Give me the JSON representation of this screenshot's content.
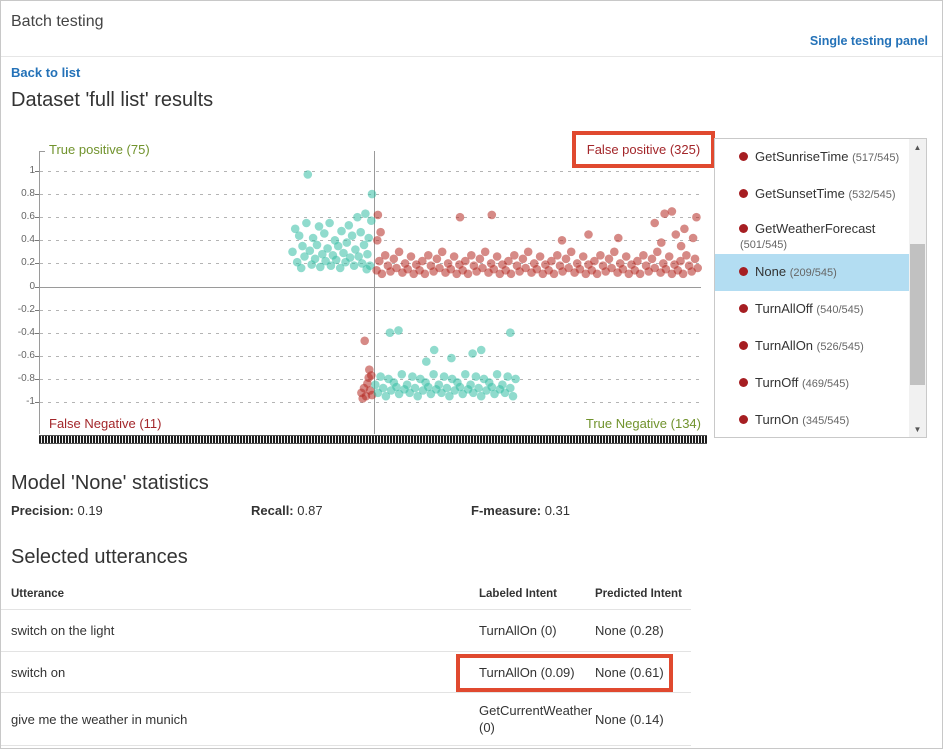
{
  "colors": {
    "link_blue": "#2472b8",
    "teal_point": "#35bda4",
    "red_point": "#b52a23",
    "green_label": "#71932d",
    "red_label": "#a3262a",
    "selected_row_bg": "#b3ddf2",
    "annotation_red": "#e0492f",
    "intent_dot_red": "#a61e22"
  },
  "header": {
    "title": "Batch testing",
    "panel_link": "Single testing panel"
  },
  "back_link": "Back to list",
  "dataset_heading": "Dataset 'full list' results",
  "chart_data": {
    "type": "scatter",
    "title": "Dataset 'full list' results",
    "xlabel": "",
    "ylabel": "confidence score",
    "ylim": [
      -1,
      1
    ],
    "grid": true,
    "y_ticks": [
      1,
      0.8,
      0.6,
      0.4,
      0.2,
      0,
      -0.2,
      -0.4,
      -0.6,
      -0.8,
      -1
    ],
    "quadrant_labels": {
      "true_positive": "True positive (75)",
      "false_positive": "False positive (325)",
      "false_negative": "False Negative (11)",
      "true_negative": "True Negative (134)"
    },
    "quadrant_counts": {
      "true_positive": 75,
      "false_positive": 325,
      "false_negative": 11,
      "true_negative": 134
    },
    "divider_x_fraction": 0.506,
    "series": [
      {
        "name": "true-positive",
        "color": "#35bda4",
        "points": [
          [
            0.383,
            0.3
          ],
          [
            0.387,
            0.5
          ],
          [
            0.39,
            0.21
          ],
          [
            0.393,
            0.44
          ],
          [
            0.396,
            0.16
          ],
          [
            0.398,
            0.35
          ],
          [
            0.401,
            0.26
          ],
          [
            0.404,
            0.55
          ],
          [
            0.406,
            0.97
          ],
          [
            0.409,
            0.31
          ],
          [
            0.412,
            0.19
          ],
          [
            0.414,
            0.42
          ],
          [
            0.417,
            0.24
          ],
          [
            0.42,
            0.36
          ],
          [
            0.423,
            0.52
          ],
          [
            0.425,
            0.17
          ],
          [
            0.428,
            0.28
          ],
          [
            0.431,
            0.46
          ],
          [
            0.433,
            0.22
          ],
          [
            0.436,
            0.33
          ],
          [
            0.439,
            0.55
          ],
          [
            0.441,
            0.18
          ],
          [
            0.444,
            0.27
          ],
          [
            0.447,
            0.4
          ],
          [
            0.449,
            0.23
          ],
          [
            0.452,
            0.35
          ],
          [
            0.455,
            0.16
          ],
          [
            0.457,
            0.48
          ],
          [
            0.46,
            0.29
          ],
          [
            0.463,
            0.21
          ],
          [
            0.465,
            0.38
          ],
          [
            0.468,
            0.53
          ],
          [
            0.47,
            0.25
          ],
          [
            0.473,
            0.44
          ],
          [
            0.476,
            0.18
          ],
          [
            0.478,
            0.32
          ],
          [
            0.481,
            0.6
          ],
          [
            0.483,
            0.26
          ],
          [
            0.486,
            0.47
          ],
          [
            0.488,
            0.2
          ],
          [
            0.491,
            0.36
          ],
          [
            0.493,
            0.63
          ],
          [
            0.496,
            0.28
          ],
          [
            0.498,
            0.42
          ],
          [
            0.5,
            0.18
          ],
          [
            0.502,
            0.57
          ],
          [
            0.503,
            0.8
          ],
          [
            0.495,
            0.15
          ]
        ]
      },
      {
        "name": "false-positive",
        "color": "#b52a23",
        "points": [
          [
            0.51,
            0.14
          ],
          [
            0.514,
            0.22
          ],
          [
            0.518,
            0.11
          ],
          [
            0.523,
            0.27
          ],
          [
            0.527,
            0.18
          ],
          [
            0.531,
            0.13
          ],
          [
            0.536,
            0.24
          ],
          [
            0.54,
            0.16
          ],
          [
            0.544,
            0.3
          ],
          [
            0.549,
            0.12
          ],
          [
            0.553,
            0.2
          ],
          [
            0.557,
            0.15
          ],
          [
            0.562,
            0.26
          ],
          [
            0.566,
            0.11
          ],
          [
            0.57,
            0.19
          ],
          [
            0.575,
            0.14
          ],
          [
            0.579,
            0.22
          ],
          [
            0.583,
            0.11
          ],
          [
            0.588,
            0.27
          ],
          [
            0.592,
            0.18
          ],
          [
            0.596,
            0.13
          ],
          [
            0.601,
            0.24
          ],
          [
            0.605,
            0.16
          ],
          [
            0.609,
            0.3
          ],
          [
            0.614,
            0.12
          ],
          [
            0.618,
            0.2
          ],
          [
            0.622,
            0.15
          ],
          [
            0.627,
            0.26
          ],
          [
            0.631,
            0.11
          ],
          [
            0.635,
            0.19
          ],
          [
            0.64,
            0.14
          ],
          [
            0.644,
            0.22
          ],
          [
            0.648,
            0.11
          ],
          [
            0.653,
            0.27
          ],
          [
            0.657,
            0.18
          ],
          [
            0.661,
            0.13
          ],
          [
            0.666,
            0.24
          ],
          [
            0.67,
            0.16
          ],
          [
            0.674,
            0.3
          ],
          [
            0.679,
            0.12
          ],
          [
            0.683,
            0.2
          ],
          [
            0.687,
            0.15
          ],
          [
            0.692,
            0.26
          ],
          [
            0.696,
            0.11
          ],
          [
            0.7,
            0.19
          ],
          [
            0.705,
            0.14
          ],
          [
            0.709,
            0.22
          ],
          [
            0.713,
            0.11
          ],
          [
            0.718,
            0.27
          ],
          [
            0.722,
            0.18
          ],
          [
            0.726,
            0.13
          ],
          [
            0.731,
            0.24
          ],
          [
            0.735,
            0.16
          ],
          [
            0.739,
            0.3
          ],
          [
            0.744,
            0.12
          ],
          [
            0.748,
            0.2
          ],
          [
            0.752,
            0.15
          ],
          [
            0.757,
            0.26
          ],
          [
            0.761,
            0.11
          ],
          [
            0.765,
            0.19
          ],
          [
            0.77,
            0.14
          ],
          [
            0.774,
            0.22
          ],
          [
            0.778,
            0.11
          ],
          [
            0.783,
            0.27
          ],
          [
            0.787,
            0.18
          ],
          [
            0.791,
            0.13
          ],
          [
            0.796,
            0.24
          ],
          [
            0.8,
            0.16
          ],
          [
            0.804,
            0.3
          ],
          [
            0.809,
            0.12
          ],
          [
            0.813,
            0.2
          ],
          [
            0.817,
            0.15
          ],
          [
            0.822,
            0.26
          ],
          [
            0.826,
            0.11
          ],
          [
            0.83,
            0.19
          ],
          [
            0.835,
            0.14
          ],
          [
            0.839,
            0.22
          ],
          [
            0.843,
            0.11
          ],
          [
            0.848,
            0.27
          ],
          [
            0.852,
            0.18
          ],
          [
            0.856,
            0.13
          ],
          [
            0.861,
            0.24
          ],
          [
            0.865,
            0.16
          ],
          [
            0.869,
            0.3
          ],
          [
            0.874,
            0.12
          ],
          [
            0.878,
            0.2
          ],
          [
            0.882,
            0.15
          ],
          [
            0.887,
            0.26
          ],
          [
            0.891,
            0.11
          ],
          [
            0.895,
            0.19
          ],
          [
            0.9,
            0.14
          ],
          [
            0.904,
            0.22
          ],
          [
            0.908,
            0.11
          ],
          [
            0.913,
            0.27
          ],
          [
            0.917,
            0.18
          ],
          [
            0.921,
            0.13
          ],
          [
            0.926,
            0.24
          ],
          [
            0.93,
            0.16
          ],
          [
            0.934,
            0.3
          ],
          [
            0.939,
            0.12
          ],
          [
            0.943,
            0.2
          ],
          [
            0.947,
            0.15
          ],
          [
            0.952,
            0.26
          ],
          [
            0.956,
            0.11
          ],
          [
            0.96,
            0.19
          ],
          [
            0.965,
            0.14
          ],
          [
            0.969,
            0.22
          ],
          [
            0.973,
            0.11
          ],
          [
            0.978,
            0.27
          ],
          [
            0.982,
            0.18
          ],
          [
            0.986,
            0.13
          ],
          [
            0.991,
            0.24
          ],
          [
            0.995,
            0.16
          ],
          [
            0.511,
            0.4
          ],
          [
            0.512,
            0.62
          ],
          [
            0.516,
            0.47
          ],
          [
            0.636,
            0.6
          ],
          [
            0.684,
            0.62
          ],
          [
            0.79,
            0.4
          ],
          [
            0.83,
            0.45
          ],
          [
            0.875,
            0.42
          ],
          [
            0.93,
            0.55
          ],
          [
            0.945,
            0.63
          ],
          [
            0.956,
            0.65
          ],
          [
            0.962,
            0.45
          ],
          [
            0.975,
            0.5
          ],
          [
            0.988,
            0.42
          ],
          [
            0.993,
            0.6
          ],
          [
            0.94,
            0.38
          ],
          [
            0.97,
            0.35
          ]
        ]
      },
      {
        "name": "false-negative",
        "color": "#b52a23",
        "points": [
          [
            0.487,
            -0.92
          ],
          [
            0.489,
            -0.97
          ],
          [
            0.491,
            -0.88
          ],
          [
            0.494,
            -0.95
          ],
          [
            0.496,
            -0.84
          ],
          [
            0.498,
            -0.79
          ],
          [
            0.5,
            -0.9
          ],
          [
            0.502,
            -0.77
          ],
          [
            0.503,
            -0.94
          ],
          [
            0.492,
            -0.47
          ],
          [
            0.499,
            -0.72
          ]
        ]
      },
      {
        "name": "true-negative",
        "color": "#35bda4",
        "points": [
          [
            0.508,
            -0.85
          ],
          [
            0.512,
            -0.92
          ],
          [
            0.516,
            -0.78
          ],
          [
            0.52,
            -0.88
          ],
          [
            0.524,
            -0.95
          ],
          [
            0.528,
            -0.8
          ],
          [
            0.532,
            -0.9
          ],
          [
            0.536,
            -0.83
          ],
          [
            0.54,
            -0.87
          ],
          [
            0.544,
            -0.93
          ],
          [
            0.548,
            -0.76
          ],
          [
            0.552,
            -0.89
          ],
          [
            0.556,
            -0.85
          ],
          [
            0.56,
            -0.92
          ],
          [
            0.564,
            -0.78
          ],
          [
            0.568,
            -0.88
          ],
          [
            0.572,
            -0.95
          ],
          [
            0.576,
            -0.8
          ],
          [
            0.58,
            -0.9
          ],
          [
            0.584,
            -0.83
          ],
          [
            0.588,
            -0.87
          ],
          [
            0.592,
            -0.93
          ],
          [
            0.596,
            -0.76
          ],
          [
            0.6,
            -0.89
          ],
          [
            0.604,
            -0.85
          ],
          [
            0.608,
            -0.92
          ],
          [
            0.612,
            -0.78
          ],
          [
            0.616,
            -0.88
          ],
          [
            0.62,
            -0.95
          ],
          [
            0.624,
            -0.8
          ],
          [
            0.628,
            -0.9
          ],
          [
            0.632,
            -0.83
          ],
          [
            0.636,
            -0.87
          ],
          [
            0.64,
            -0.93
          ],
          [
            0.644,
            -0.76
          ],
          [
            0.648,
            -0.89
          ],
          [
            0.652,
            -0.85
          ],
          [
            0.656,
            -0.92
          ],
          [
            0.66,
            -0.78
          ],
          [
            0.664,
            -0.88
          ],
          [
            0.668,
            -0.95
          ],
          [
            0.672,
            -0.8
          ],
          [
            0.676,
            -0.9
          ],
          [
            0.68,
            -0.83
          ],
          [
            0.684,
            -0.87
          ],
          [
            0.688,
            -0.93
          ],
          [
            0.692,
            -0.76
          ],
          [
            0.696,
            -0.89
          ],
          [
            0.7,
            -0.85
          ],
          [
            0.704,
            -0.92
          ],
          [
            0.708,
            -0.78
          ],
          [
            0.712,
            -0.88
          ],
          [
            0.716,
            -0.95
          ],
          [
            0.72,
            -0.8
          ],
          [
            0.53,
            -0.4
          ],
          [
            0.543,
            -0.38
          ],
          [
            0.712,
            -0.4
          ],
          [
            0.597,
            -0.55
          ],
          [
            0.623,
            -0.62
          ],
          [
            0.655,
            -0.58
          ],
          [
            0.585,
            -0.65
          ],
          [
            0.668,
            -0.55
          ]
        ]
      }
    ]
  },
  "intent_list": {
    "items": [
      {
        "name": "GetSunriseTime",
        "count": "(517/545)",
        "selected": false
      },
      {
        "name": "GetSunsetTime",
        "count": "(532/545)",
        "selected": false
      },
      {
        "name": "GetWeatherForecast",
        "count": "(501/545)",
        "selected": false
      },
      {
        "name": "None",
        "count": "(209/545)",
        "selected": true
      },
      {
        "name": "TurnAllOff",
        "count": "(540/545)",
        "selected": false
      },
      {
        "name": "TurnAllOn",
        "count": "(526/545)",
        "selected": false
      },
      {
        "name": "TurnOff",
        "count": "(469/545)",
        "selected": false
      },
      {
        "name": "TurnOn",
        "count": "(345/545)",
        "selected": false
      }
    ]
  },
  "stats": {
    "heading": "Model 'None' statistics",
    "items": [
      {
        "label": "Precision:",
        "value": "0.19"
      },
      {
        "label": "Recall:",
        "value": "0.87"
      },
      {
        "label": "F-measure:",
        "value": "0.31"
      }
    ]
  },
  "utterances": {
    "heading": "Selected utterances",
    "columns": {
      "c0": "Utterance",
      "c1": "Labeled Intent",
      "c2": "Predicted Intent"
    },
    "rows": [
      {
        "utterance": "switch on the light",
        "labeled": "TurnAllOn (0)",
        "predicted": "None (0.28)",
        "highlighted": false
      },
      {
        "utterance": "switch on",
        "labeled": "TurnAllOn (0.09)",
        "predicted": "None (0.61)",
        "highlighted": true
      },
      {
        "utterance": "give me the weather in munich",
        "labeled": "GetCurrentWeather (0)",
        "predicted": "None (0.14)",
        "highlighted": false
      }
    ]
  }
}
